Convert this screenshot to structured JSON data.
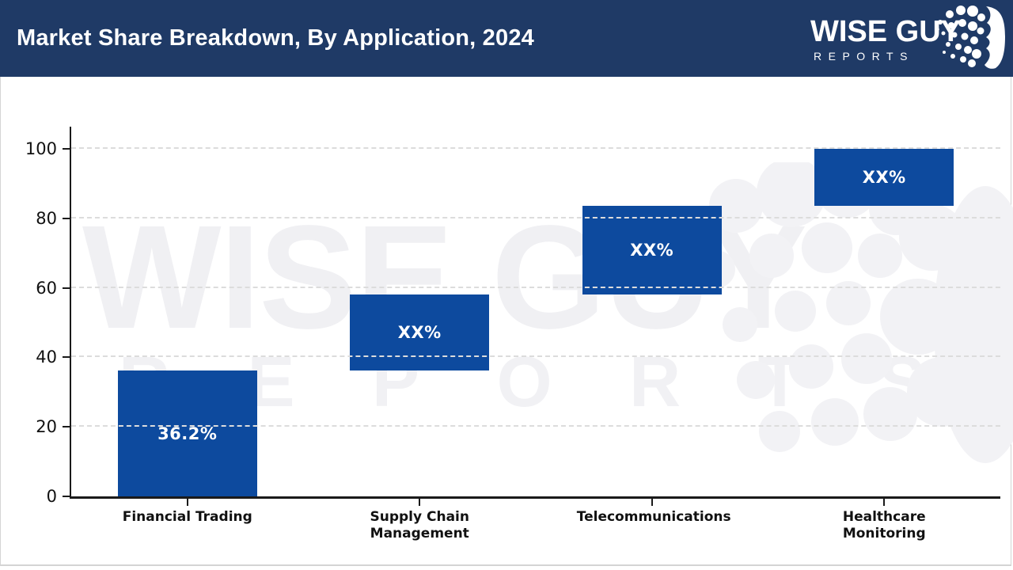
{
  "header": {
    "title": "Market Share Breakdown, By Application, 2024",
    "bg_color": "#1f3a66",
    "logo": {
      "line1": "WISE GUY",
      "line2": "R E P O R T S"
    }
  },
  "watermark": {
    "line1": "WISE GUY",
    "line2": "REPORTS"
  },
  "chart_data": {
    "type": "bar",
    "subtype": "waterfall",
    "title": "Market Share Breakdown, By Application, 2024",
    "categories": [
      "Financial Trading",
      "Supply Chain Management",
      "Telecommunications",
      "Healthcare Monitoring"
    ],
    "segments": [
      {
        "category": "Financial Trading",
        "start": 0,
        "end": 36.2,
        "label": "36.2%"
      },
      {
        "category": "Supply Chain Management",
        "start": 36.2,
        "end": 58,
        "label": "XX%"
      },
      {
        "category": "Telecommunications",
        "start": 58,
        "end": 83.5,
        "label": "XX%"
      },
      {
        "category": "Healthcare Monitoring",
        "start": 83.5,
        "end": 100,
        "label": "XX%"
      }
    ],
    "xlabel": "",
    "ylabel": "",
    "ylim": [
      0,
      100
    ],
    "yticks": [
      0,
      20,
      40,
      60,
      80,
      100
    ],
    "grid": "horizontal-dashed-above-bars",
    "legend": "none",
    "bar_color": "#0d4a9e",
    "bar_label_color": "#ffffff",
    "axis_color": "#1a1a1a",
    "grid_color": "#dcdcdc"
  }
}
